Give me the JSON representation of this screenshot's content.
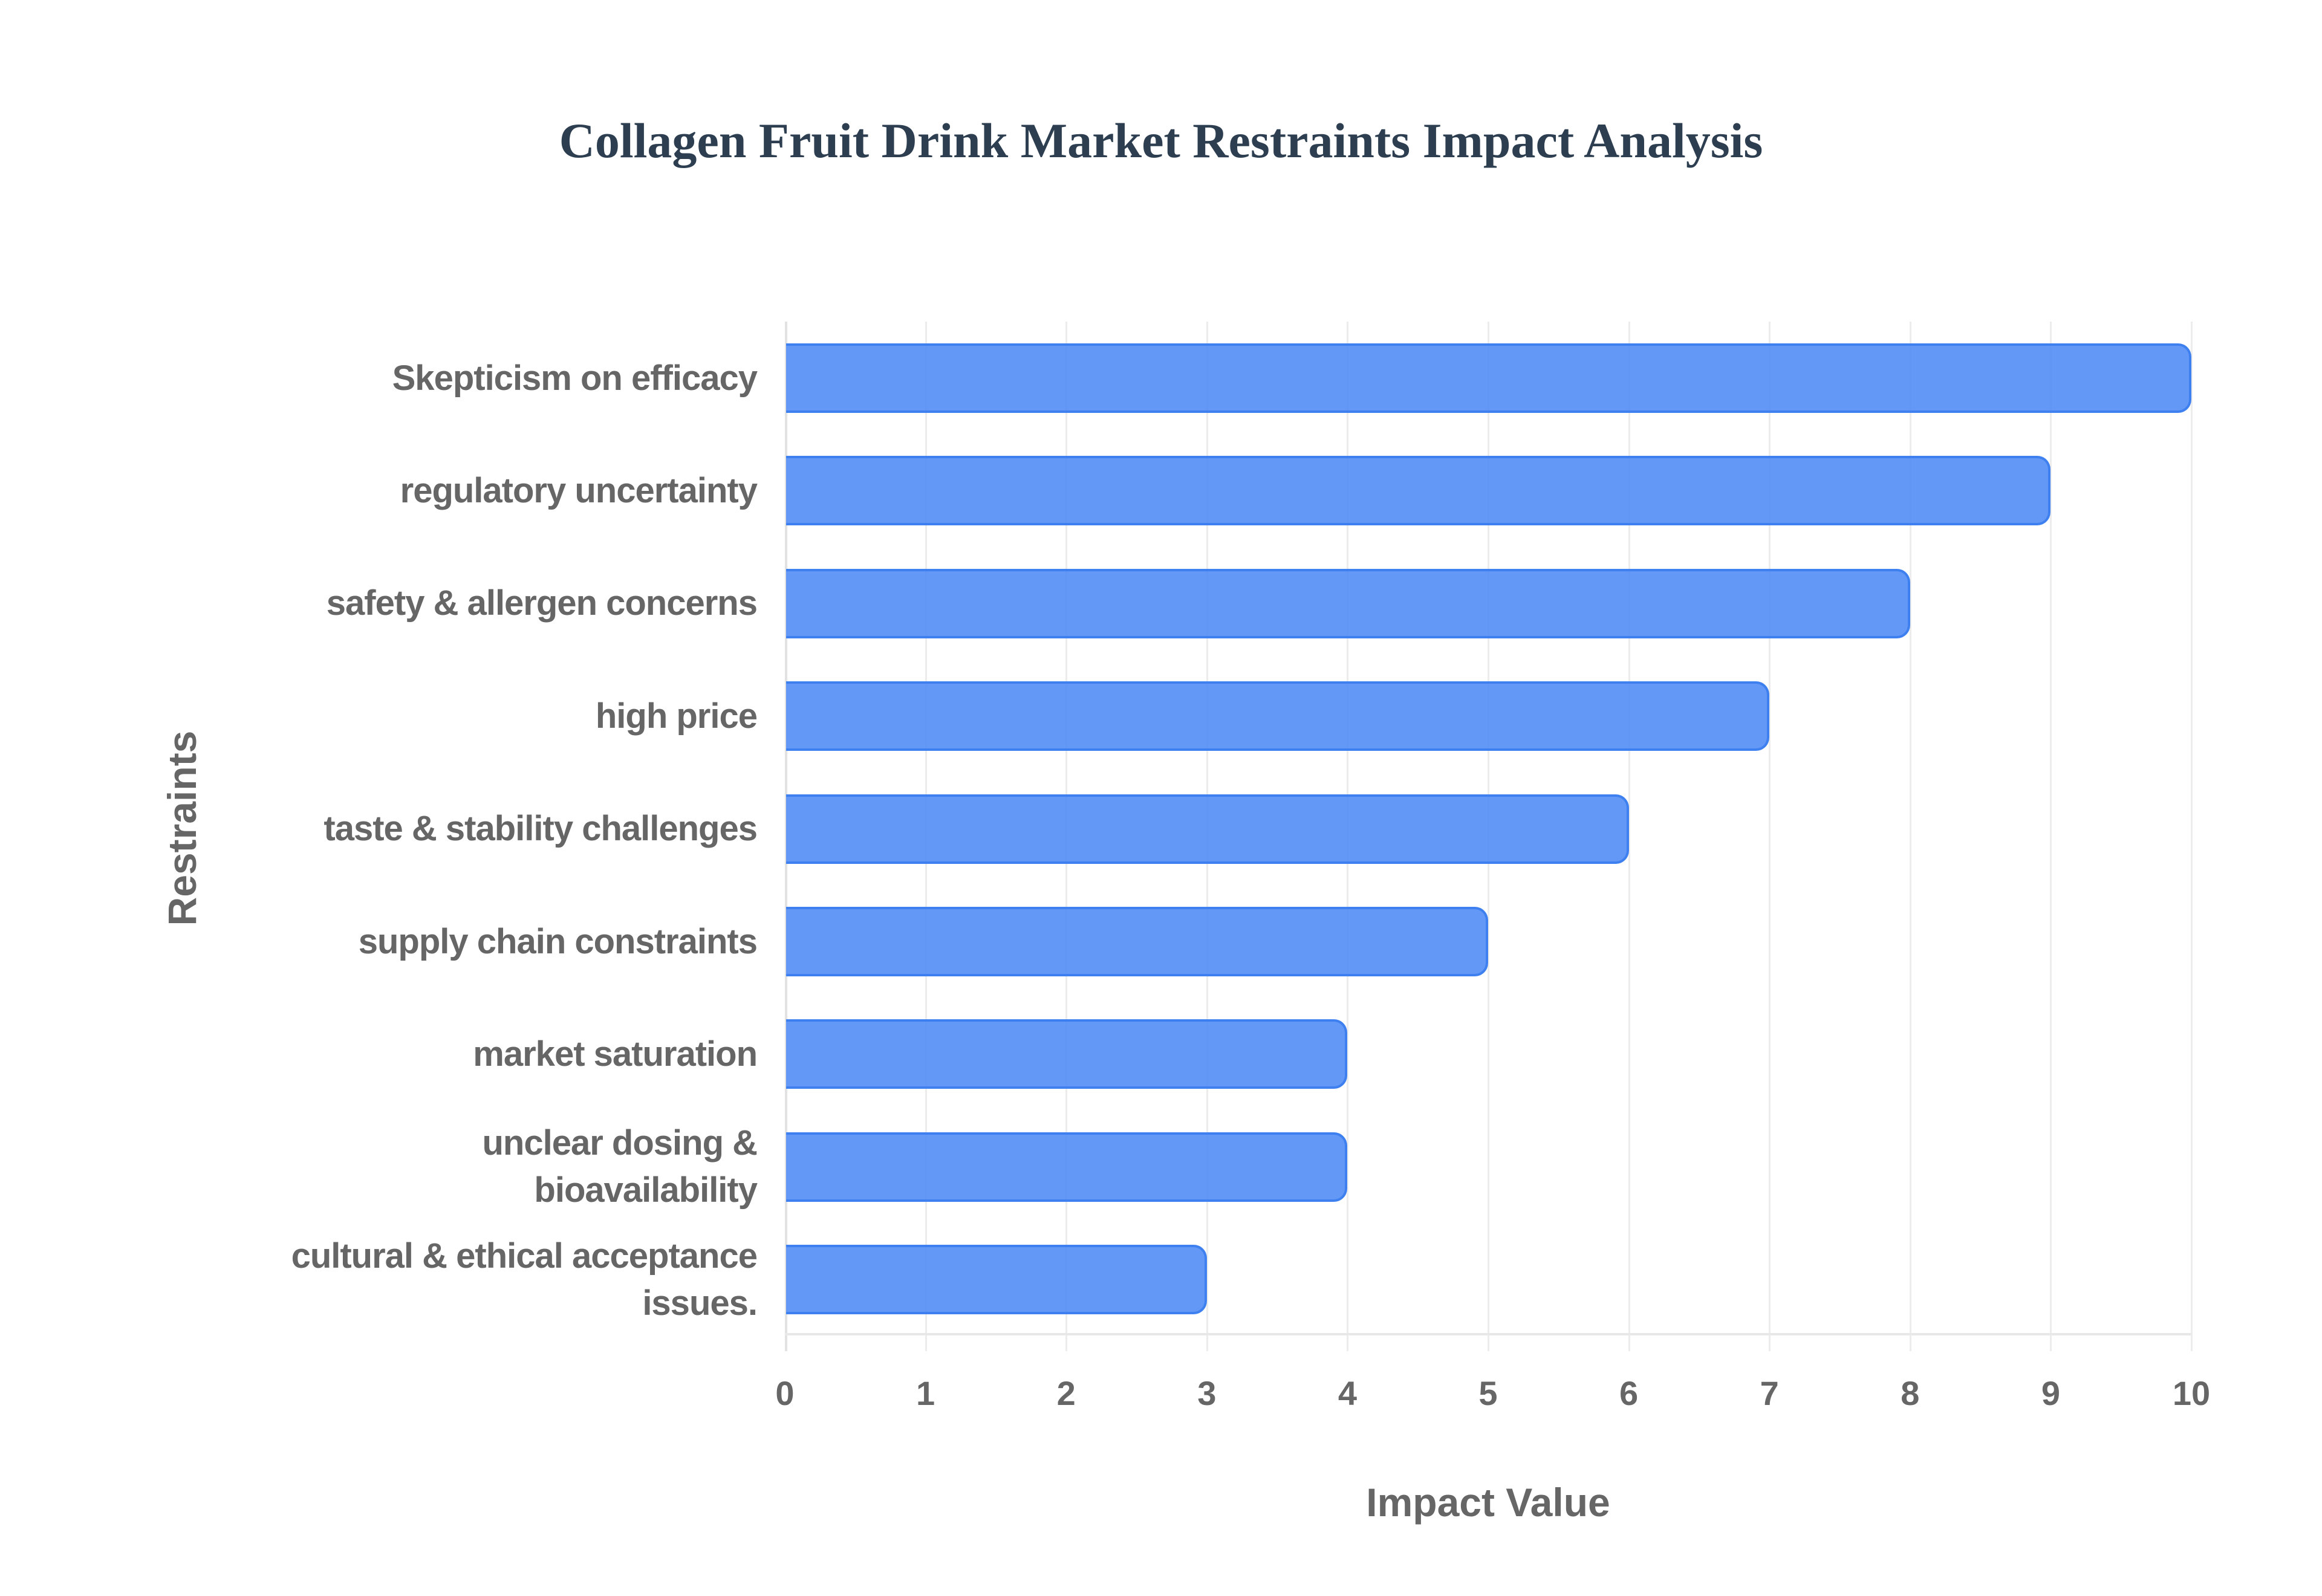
{
  "title": "Collagen Fruit Drink Market Restraints Impact Analysis",
  "colors": {
    "bar_fill": "#6199F5",
    "bar_border": "#3E80EF",
    "title": "#2C3E50",
    "axis_text": "#666666",
    "grid": "#ECECEC"
  },
  "axes": {
    "x_title": "Impact Value",
    "y_title": "Restraints",
    "x_ticks": [
      "0",
      "1",
      "2",
      "3",
      "4",
      "5",
      "6",
      "7",
      "8",
      "9",
      "10"
    ]
  },
  "chart_data": {
    "type": "bar",
    "orientation": "horizontal",
    "title": "Collagen Fruit Drink Market Restraints Impact Analysis",
    "xlabel": "Impact Value",
    "ylabel": "Restraints",
    "xlim": [
      0,
      10
    ],
    "grid": true,
    "legend": null,
    "categories": [
      "Skepticism on efficacy",
      "regulatory uncertainty",
      "safety & allergen concerns",
      "high price",
      "taste & stability challenges",
      "supply chain constraints",
      "market saturation",
      "unclear dosing & bioavailability",
      "cultural & ethical acceptance issues."
    ],
    "values": [
      10,
      9,
      8,
      7,
      6,
      5,
      4,
      4,
      3
    ],
    "series": [
      {
        "name": "Impact Value",
        "values": [
          10,
          9,
          8,
          7,
          6,
          5,
          4,
          4,
          3
        ]
      }
    ]
  },
  "labels": [
    [
      "Skepticism on efficacy"
    ],
    [
      "regulatory uncertainty"
    ],
    [
      "safety & allergen concerns"
    ],
    [
      "high price"
    ],
    [
      "taste & stability challenges"
    ],
    [
      "supply chain constraints"
    ],
    [
      "market saturation"
    ],
    [
      "unclear dosing &",
      "bioavailability"
    ],
    [
      "cultural & ethical acceptance",
      "issues."
    ]
  ]
}
